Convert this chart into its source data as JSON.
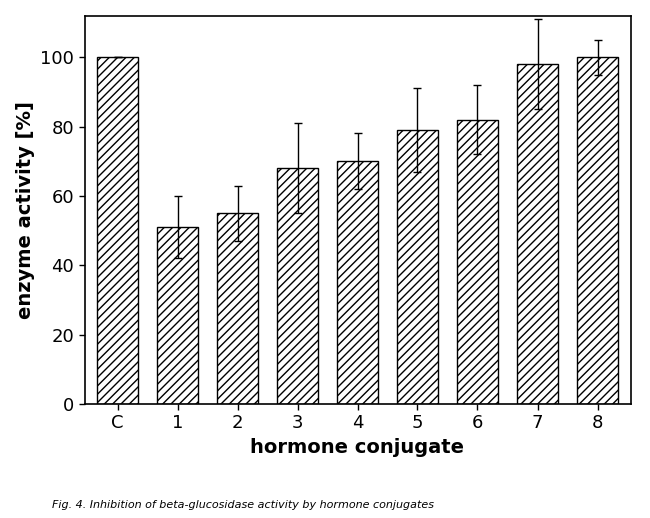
{
  "categories": [
    "C",
    "1",
    "2",
    "3",
    "4",
    "5",
    "6",
    "7",
    "8"
  ],
  "values": [
    100,
    51,
    55,
    68,
    70,
    79,
    82,
    98,
    100
  ],
  "errors": [
    0,
    9,
    8,
    13,
    8,
    12,
    10,
    13,
    5
  ],
  "ylabel": "enzyme activity [%]",
  "xlabel": "hormone conjugate",
  "ylim": [
    0,
    112
  ],
  "yticks": [
    0,
    20,
    40,
    60,
    80,
    100
  ],
  "bar_color": "white",
  "hatch": "////",
  "bar_edgecolor": "black",
  "error_color": "black",
  "capsize": 3,
  "bar_width": 0.68,
  "background_color": "white",
  "axis_fontsize": 14,
  "tick_fontsize": 13,
  "figsize": [
    6.5,
    5.18
  ],
  "dpi": 100
}
